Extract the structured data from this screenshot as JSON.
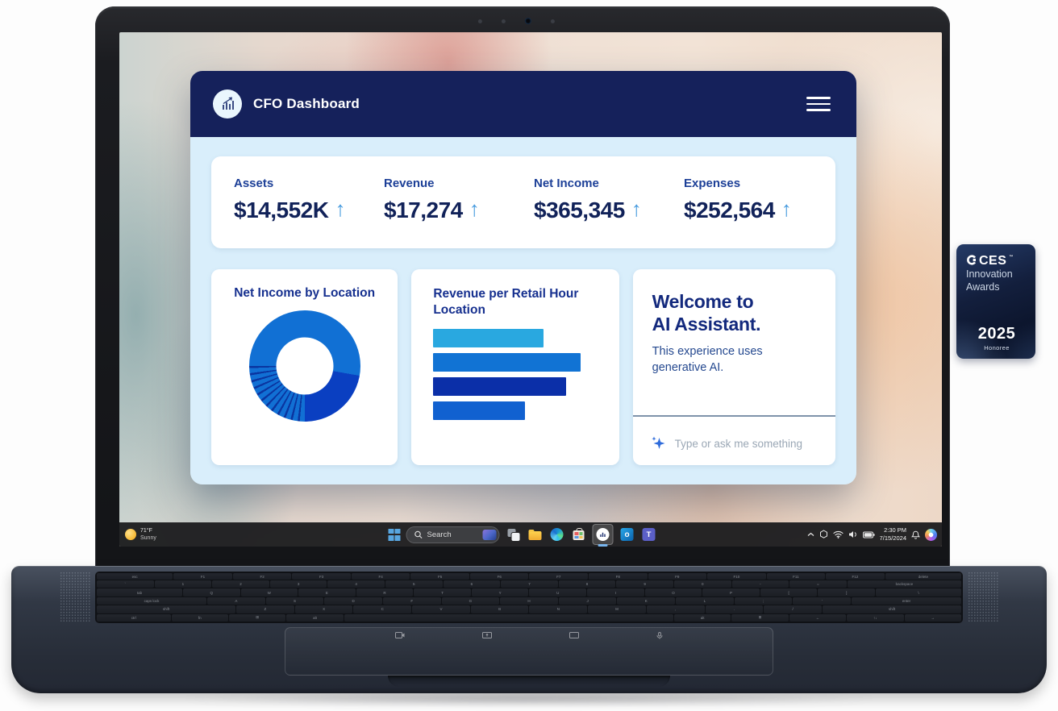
{
  "app": {
    "title": "CFO Dashboard",
    "kpis": [
      {
        "label": "Assets",
        "value": "$14,552K",
        "trend": "up"
      },
      {
        "label": "Revenue",
        "value": "$17,274",
        "trend": "up"
      },
      {
        "label": "Net Income",
        "value": "$365,345",
        "trend": "up"
      },
      {
        "label": "Expenses",
        "value": "$252,564",
        "trend": "up"
      }
    ],
    "assistant": {
      "heading_line1": "Welcome to",
      "heading_line2": "AI Assistant.",
      "body": "This experience uses generative AI.",
      "input_placeholder": "Type or ask me something"
    },
    "glyphs": {
      "trend_up_arrow": "↑"
    }
  },
  "chart_data": [
    {
      "type": "pie",
      "variant": "donut",
      "title": "Net Income by Location",
      "labels_visible": false,
      "segments": [
        {
          "name": "primary-large-slice",
          "share_pct": 52.8,
          "color": "#1170d4"
        },
        {
          "name": "dark-slice",
          "share_pct": 22.2,
          "color": "#0a3fc1"
        },
        {
          "name": "striped-small-slices",
          "share_pct": 25.0,
          "color": "#1170d4",
          "striped": true,
          "stripe_count": 12,
          "stripe_gap_color": "#0a35a0"
        }
      ]
    },
    {
      "type": "bar",
      "orientation": "horizontal",
      "title": "Revenue per Retail Hour Location",
      "axis_visible": false,
      "value_labels_visible": false,
      "values_relative_pct": [
        67,
        90,
        81,
        56
      ],
      "colors": [
        "#29a8e0",
        "#1173d4",
        "#0b2fa8",
        "#1161d0"
      ]
    }
  ],
  "desktop": {
    "taskbar": {
      "weather": {
        "temperature": "71°F",
        "condition": "Sunny"
      },
      "search": {
        "placeholder": "Search"
      },
      "app_icons": [
        "task-view",
        "file-explorer",
        "microsoft-edge",
        "microsoft-store",
        "cfo-dashboard-app",
        "outlook",
        "microsoft-teams"
      ],
      "outlook_glyph": "o",
      "teams_glyph": "T",
      "tray": {
        "time": "2:30 PM",
        "date": "7/15/2024"
      }
    }
  },
  "ces_badge": {
    "brand": "CES",
    "trademark": "™",
    "line1": "Innovation",
    "line2": "Awards",
    "year": "2025",
    "subtitle": "Honoree"
  },
  "keyboard": {
    "rows": [
      [
        "esc",
        "F1",
        "F2",
        "F3",
        "F4",
        "F5",
        "F6",
        "F7",
        "F8",
        "F9",
        "F10",
        "F11",
        "F12",
        "delete"
      ],
      [
        "`",
        "1",
        "2",
        "3",
        "4",
        "5",
        "6",
        "7",
        "8",
        "9",
        "0",
        "-",
        "=",
        "backspace"
      ],
      [
        "tab",
        "Q",
        "W",
        "E",
        "R",
        "T",
        "Y",
        "U",
        "I",
        "O",
        "P",
        "[",
        "]",
        "\\"
      ],
      [
        "caps lock",
        "A",
        "S",
        "D",
        "F",
        "G",
        "H",
        "J",
        "K",
        "L",
        ";",
        "'",
        "enter"
      ],
      [
        "shift",
        "Z",
        "X",
        "C",
        "V",
        "B",
        "N",
        "M",
        ",",
        ".",
        "/",
        "shift"
      ],
      [
        "ctrl",
        "fn",
        "⊞",
        "alt",
        " ",
        "alt",
        "⊞",
        "←",
        "↑↓",
        "→"
      ]
    ]
  }
}
